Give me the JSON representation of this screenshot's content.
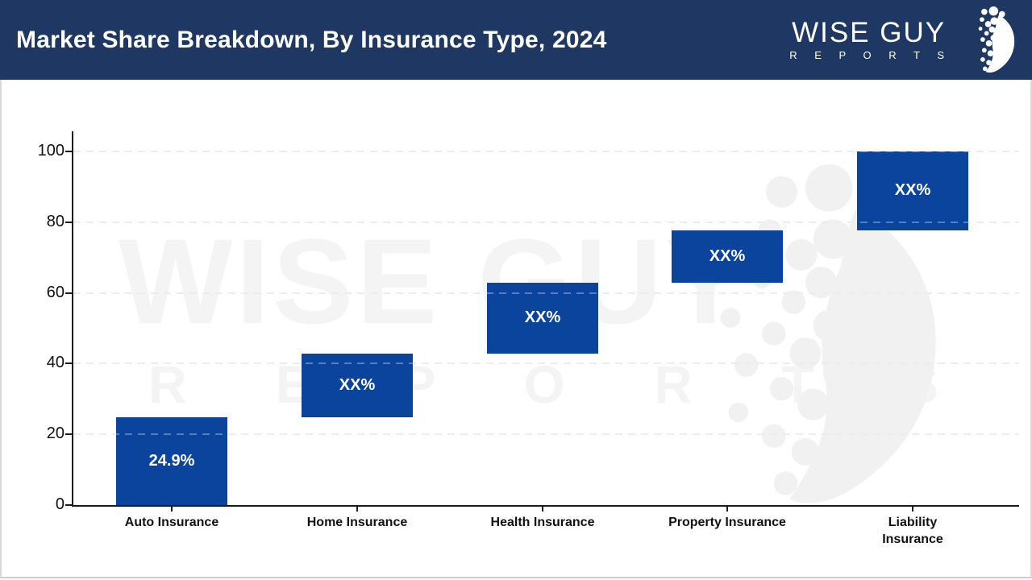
{
  "header": {
    "title": "Market Share Breakdown, By Insurance Type, 2024",
    "bg_color": "#1f3863",
    "logo": {
      "line1": "WISE GUY",
      "line2": "R E P O R T S"
    }
  },
  "watermark": {
    "line1": "WISE GUY",
    "line2": "R E P O R T S"
  },
  "chart_data": {
    "type": "bar",
    "subtype": "waterfall-floating-bars",
    "title": "Market Share Breakdown, By Insurance Type, 2024",
    "categories": [
      "Auto Insurance",
      "Home Insurance",
      "Health Insurance",
      "Property Insurance",
      "Liability Insurance"
    ],
    "segments": [
      [
        0,
        24.9
      ],
      [
        24.9,
        42.9
      ],
      [
        42.9,
        62.9
      ],
      [
        62.9,
        77.7
      ],
      [
        77.7,
        100
      ]
    ],
    "bar_labels": [
      "24.9%",
      "XX%",
      "XX%",
      "XX%",
      "XX%"
    ],
    "xlabel": "",
    "ylabel": "",
    "ylim": [
      0,
      105
    ],
    "yticks": [
      0,
      20,
      40,
      60,
      80,
      100
    ],
    "grid": "horizontal dashed",
    "legend": "none",
    "bar_color": "#0a449c",
    "bar_label_color": "#ffffff"
  }
}
